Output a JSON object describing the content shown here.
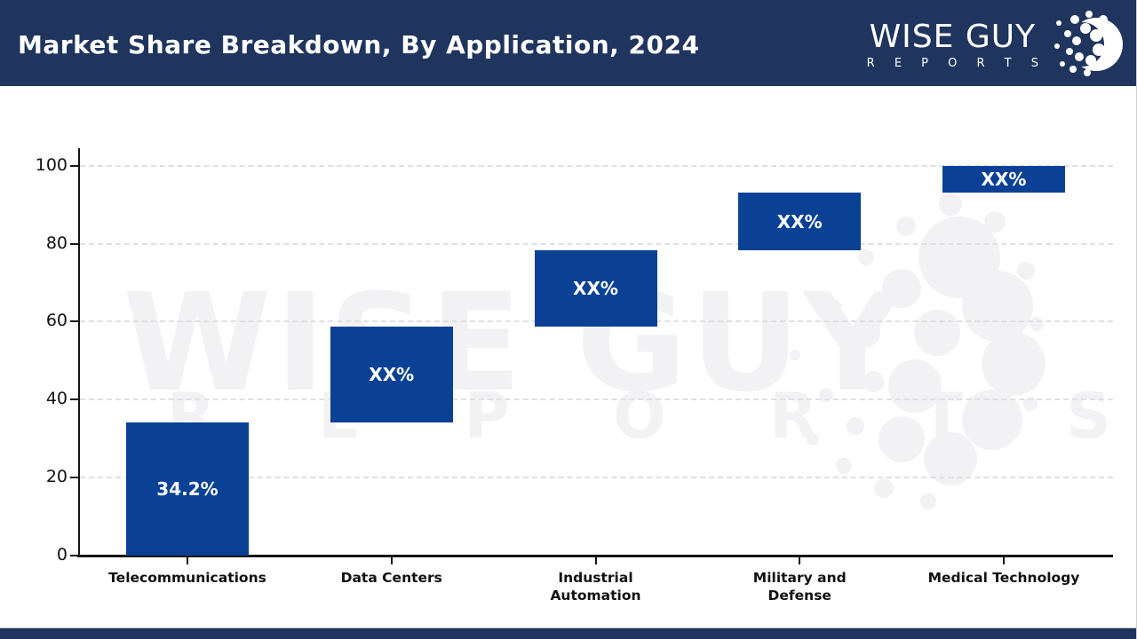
{
  "header": {
    "title": "Market Share Breakdown, By Application, 2024",
    "logo": {
      "line1": "WISE GUY",
      "line2": "R E P O R T S"
    }
  },
  "watermark": {
    "line1": "WISE GUY",
    "line2": "R E P O R T S"
  },
  "footer": {},
  "colors": {
    "header_bg": "#20355E",
    "bar": "#0a4195",
    "bar_label": "#ffffff",
    "grid": "#e0e0e0",
    "axis": "#151515",
    "watermark": "#f2f2f4"
  },
  "chart_data": {
    "type": "bar",
    "subtype": "waterfall",
    "title": "Market Share Breakdown, By Application, 2024",
    "xlabel": "",
    "ylabel": "",
    "ylim": [
      0,
      105
    ],
    "yticks": [
      0,
      20,
      40,
      60,
      80,
      100
    ],
    "grid": "horizontal-dashed",
    "legend": "none",
    "categories": [
      "Telecommunications",
      "Data Centers",
      "Industrial Automation",
      "Military and Defense",
      "Medical Technology"
    ],
    "bars": [
      {
        "category": "Telecommunications",
        "lines": [
          "Telecommunications"
        ],
        "start": 0,
        "end": 34.2,
        "label": "34.2%"
      },
      {
        "category": "Data Centers",
        "lines": [
          "Data Centers"
        ],
        "start": 34.2,
        "end": 58.8,
        "label": "XX%"
      },
      {
        "category": "Industrial Automation",
        "lines": [
          "Industrial",
          "Automation"
        ],
        "start": 58.8,
        "end": 78.2,
        "label": "XX%"
      },
      {
        "category": "Military and Defense",
        "lines": [
          "Military and",
          "Defense"
        ],
        "start": 78.2,
        "end": 93.0,
        "label": "XX%"
      },
      {
        "category": "Medical Technology",
        "lines": [
          "Medical Technology"
        ],
        "start": 93.0,
        "end": 100.0,
        "label": "XX%"
      }
    ]
  }
}
